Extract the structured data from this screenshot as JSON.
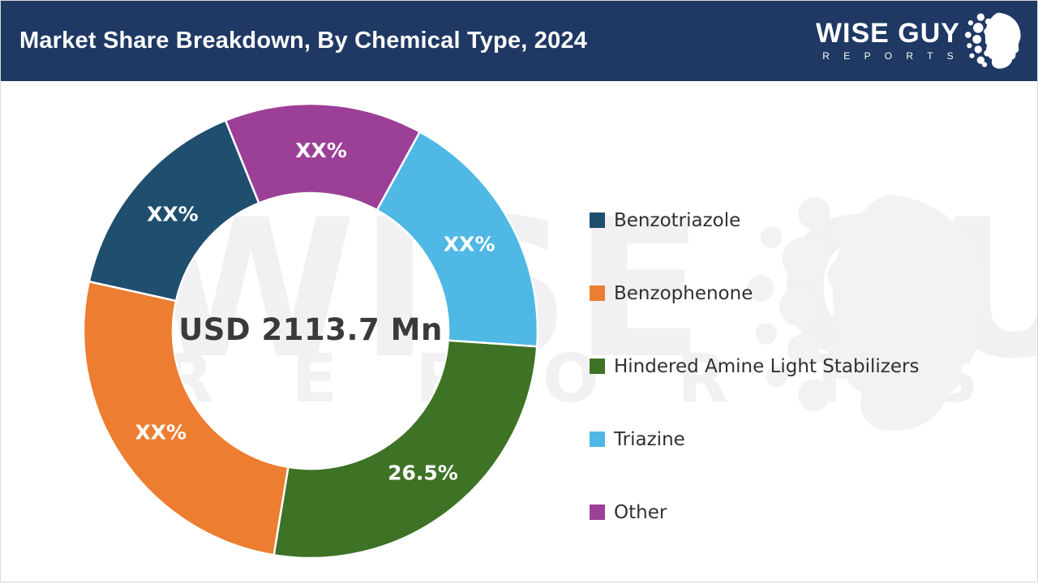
{
  "header": {
    "title": "Market Share Breakdown, By Chemical Type, 2024",
    "bg_color": "#1F3864",
    "logo": {
      "line1": "WISE GUY",
      "line2": "R E P O R T S"
    }
  },
  "watermark": {
    "line1": "WISE GUY",
    "line2": "R E P O R T S"
  },
  "chart_data": {
    "type": "pie",
    "subtype": "donut",
    "title": "Market Share Breakdown, By Chemical Type, 2024",
    "center_label": "USD 2113.7 Mn",
    "start_angle_deg": 112,
    "direction": "counterclockwise",
    "legend_position": "right",
    "slice_separator_color": "#ffffff",
    "segments": [
      {
        "label": "Benzotriazole",
        "display_value": "XX%",
        "value_pct_est": 15.4,
        "color": "#1F4E6E"
      },
      {
        "label": "Benzophenone",
        "display_value": "XX%",
        "value_pct_est": 25.9,
        "color": "#ED7D31"
      },
      {
        "label": "Hindered Amine Light Stabilizers",
        "display_value": "26.5%",
        "value_pct_est": 26.5,
        "color": "#3E7225"
      },
      {
        "label": "Triazine",
        "display_value": "XX%",
        "value_pct_est": 18.1,
        "color": "#4FB8E4"
      },
      {
        "label": "Other",
        "display_value": "XX%",
        "value_pct_est": 14.1,
        "color": "#9C3F97"
      }
    ]
  }
}
